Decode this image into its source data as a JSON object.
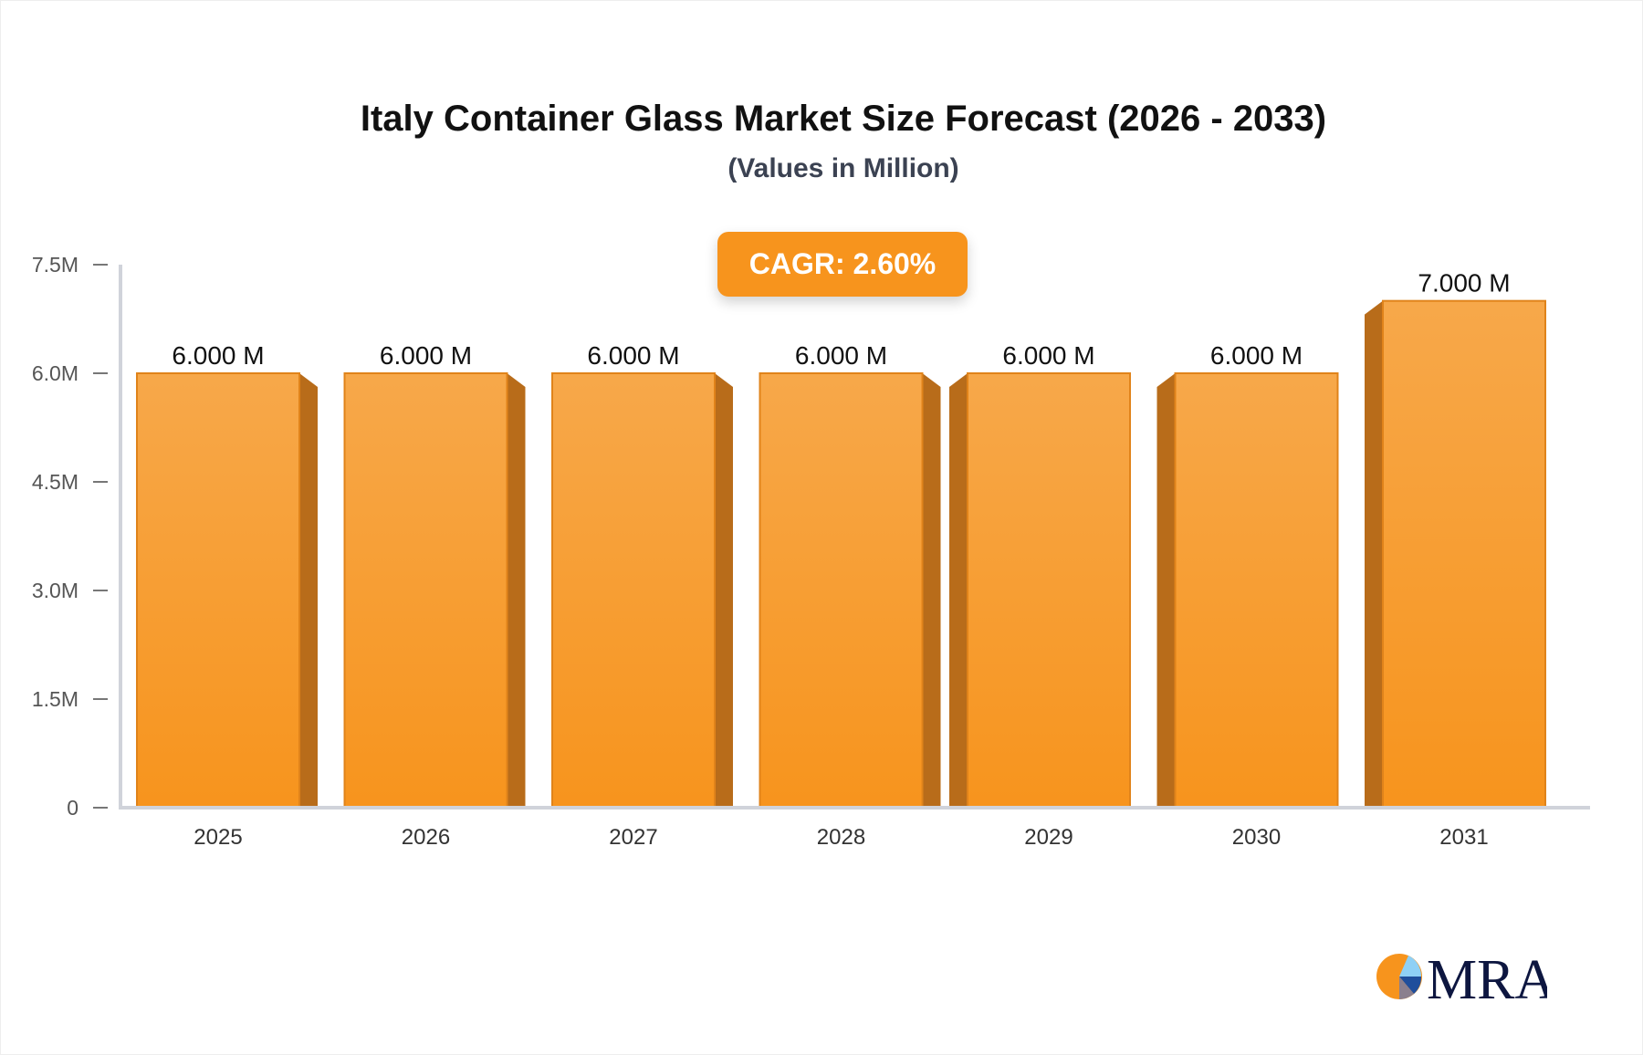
{
  "chart_data": {
    "type": "bar",
    "title": "Italy Container Glass Market Size Forecast (2026 - 2033)",
    "subtitle": "(Values in Million)",
    "annotation": "CAGR: 2.60%",
    "categories": [
      "2025",
      "2026",
      "2027",
      "2028",
      "2029",
      "2030",
      "2031"
    ],
    "values": [
      6.0,
      6.0,
      6.0,
      6.0,
      6.0,
      6.0,
      7.0
    ],
    "data_labels": [
      "6.000 M",
      "6.000 M",
      "6.000 M",
      "6.000 M",
      "6.000 M",
      "6.000 M",
      "7.000 M"
    ],
    "yticks": [
      0,
      1.5,
      3.0,
      4.5,
      6.0,
      7.5
    ],
    "ytick_labels": [
      "0",
      "1.5M",
      "3.0M",
      "4.5M",
      "6.0M",
      "7.5M"
    ],
    "ylim": [
      0,
      7.5
    ],
    "xlabel": "",
    "ylabel": "",
    "grid": false,
    "bar_color": "#f7941d",
    "bar_side_color": "#b86c1a"
  },
  "logo": {
    "text": "MRA"
  }
}
